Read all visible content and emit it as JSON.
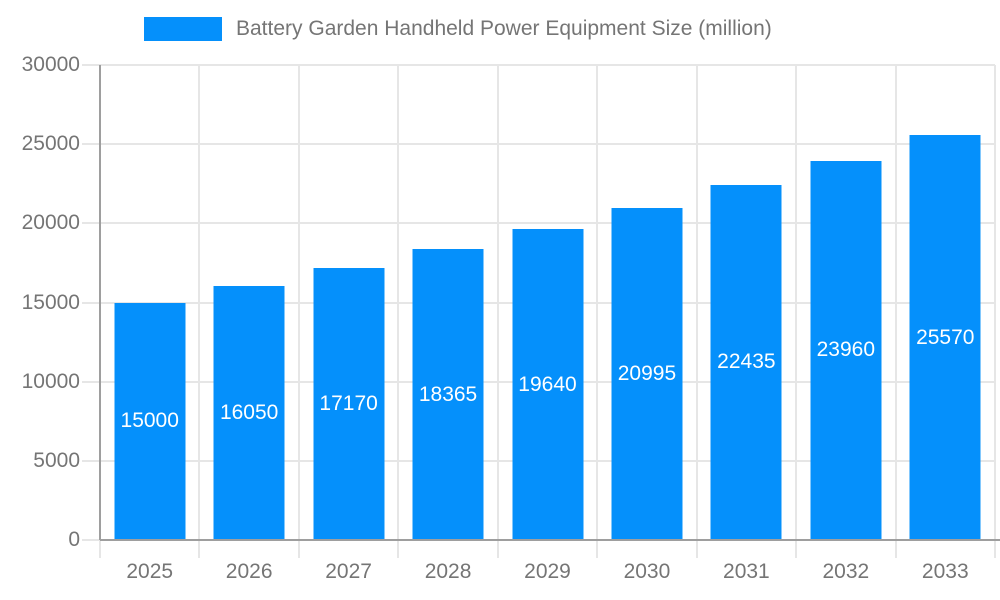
{
  "chart_data": {
    "type": "bar",
    "title": "Battery Garden Handheld Power Equipment Size (million)",
    "categories": [
      "2025",
      "2026",
      "2027",
      "2028",
      "2029",
      "2030",
      "2031",
      "2032",
      "2033"
    ],
    "values": [
      15000,
      16050,
      17170,
      18365,
      19640,
      20995,
      22435,
      23960,
      25570
    ],
    "xlabel": "",
    "ylabel": "",
    "ylim": [
      0,
      30000
    ],
    "y_ticks": [
      0,
      5000,
      10000,
      15000,
      20000,
      25000,
      30000
    ],
    "grid": true,
    "legend_position": "top",
    "bar_color": "#0590FB",
    "value_label_color": "#FFFFFF",
    "axis_text_color": "#757575",
    "axis_line_color": "#9E9E9E",
    "grid_color": "#E6E6E6"
  },
  "legend": {
    "label": "Battery Garden Handheld Power Equipment Size (million)"
  }
}
